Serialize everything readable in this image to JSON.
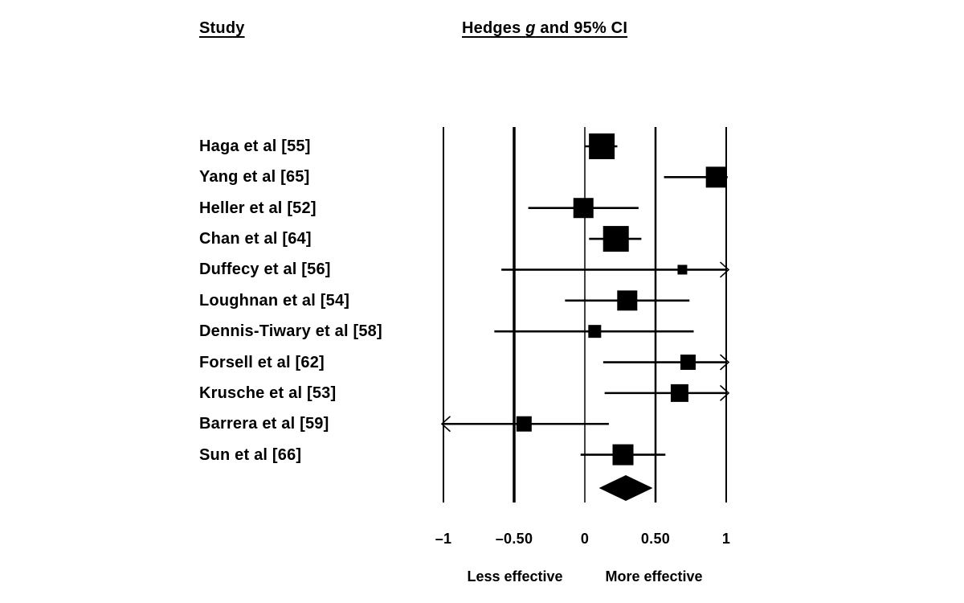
{
  "colors": {
    "ink": "#000000",
    "background": "#ffffff"
  },
  "header": {
    "study_col": "Study",
    "effect_part1": "Hedges ",
    "effect_italic": "g",
    "effect_part2": " and 95% CI"
  },
  "chart_data": {
    "type": "forest",
    "title": "Hedges g and 95% CI",
    "xlim": [
      -1,
      1
    ],
    "tick_values": [
      -1,
      -0.5,
      0,
      0.5,
      1
    ],
    "tick_labels": [
      "–1",
      "–0.50",
      "0",
      "0.50",
      "1"
    ],
    "direction_labels": {
      "left": "Less effective",
      "right": "More effective"
    },
    "studies": [
      {
        "label": "Haga et al [55]",
        "g": 0.12,
        "ci_low": 0.0,
        "ci_high": 0.23,
        "size": 32,
        "arrow_low": false,
        "arrow_high": false
      },
      {
        "label": "Yang et al [65]",
        "g": 0.93,
        "ci_low": 0.56,
        "ci_high": 1.01,
        "size": 26,
        "arrow_low": false,
        "arrow_high": false
      },
      {
        "label": "Heller et al [52]",
        "g": -0.01,
        "ci_low": -0.4,
        "ci_high": 0.38,
        "size": 25,
        "arrow_low": false,
        "arrow_high": false
      },
      {
        "label": "Chan et al [64]",
        "g": 0.22,
        "ci_low": 0.03,
        "ci_high": 0.4,
        "size": 32,
        "arrow_low": false,
        "arrow_high": false
      },
      {
        "label": "Duffecy et al [56]",
        "g": 0.69,
        "ci_low": -0.59,
        "ci_high": 1.0,
        "size": 12,
        "arrow_low": false,
        "arrow_high": true
      },
      {
        "label": "Loughnan et al [54]",
        "g": 0.3,
        "ci_low": -0.14,
        "ci_high": 0.74,
        "size": 25,
        "arrow_low": false,
        "arrow_high": false
      },
      {
        "label": "Dennis-Tiwary et al [58]",
        "g": 0.07,
        "ci_low": -0.64,
        "ci_high": 0.77,
        "size": 16,
        "arrow_low": false,
        "arrow_high": false
      },
      {
        "label": "Forsell et al [62]",
        "g": 0.73,
        "ci_low": 0.13,
        "ci_high": 1.0,
        "size": 19,
        "arrow_low": false,
        "arrow_high": true
      },
      {
        "label": "Krusche et al [53]",
        "g": 0.67,
        "ci_low": 0.14,
        "ci_high": 1.0,
        "size": 22,
        "arrow_low": false,
        "arrow_high": true
      },
      {
        "label": "Barrera et al [59]",
        "g": -0.43,
        "ci_low": -1.0,
        "ci_high": 0.17,
        "size": 19,
        "arrow_low": true,
        "arrow_high": false
      },
      {
        "label": "Sun et al [66]",
        "g": 0.27,
        "ci_low": -0.03,
        "ci_high": 0.57,
        "size": 26,
        "arrow_low": false,
        "arrow_high": false
      }
    ],
    "overall": {
      "g": 0.29,
      "ci_low": 0.1,
      "ci_high": 0.48
    }
  }
}
